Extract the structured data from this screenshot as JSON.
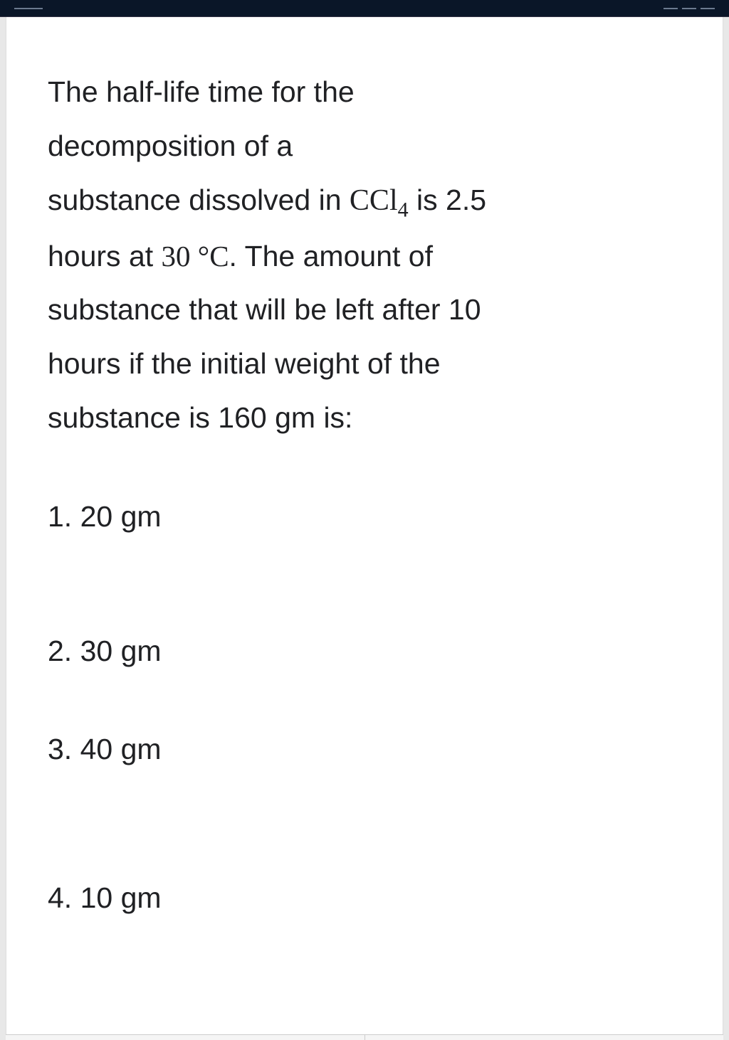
{
  "question": {
    "line1": "The half-life time for the",
    "line2": "decomposition of a",
    "line3_pre": "substance dissolved in ",
    "line3_chem": "CCl",
    "line3_sub": "4",
    "line3_post": " is 2.5",
    "line4_pre": "hours at ",
    "line4_temp": "30",
    "line4_deg": " °C",
    "line4_post": ". The amount of",
    "line5": "substance that will be left after 10",
    "line6": "hours if the initial weight of the",
    "line7": "substance is 160 gm is:"
  },
  "options": {
    "opt1": "1. 20 gm",
    "opt2": "2. 30 gm",
    "opt3": "3. 40 gm",
    "opt4": "4. 10 gm"
  },
  "styling": {
    "background_color": "#ffffff",
    "text_color": "#202124",
    "topbar_color": "#0a1628",
    "body_bg": "#e8e8e8",
    "question_fontsize": 41,
    "option_fontsize": 41,
    "line_height": 1.85
  }
}
